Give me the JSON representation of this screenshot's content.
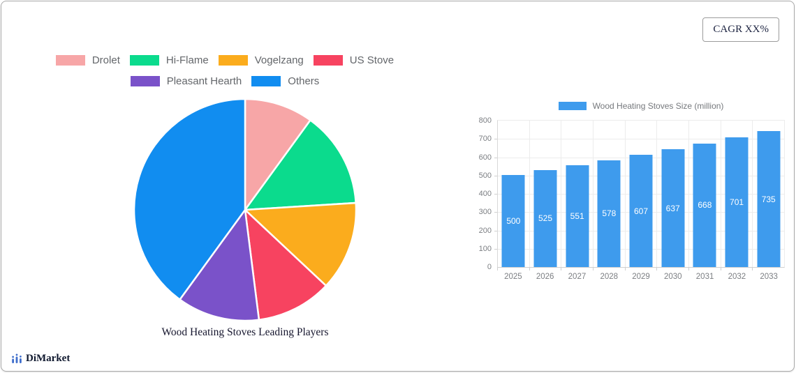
{
  "cagr_button": {
    "label": "CAGR XX%"
  },
  "logo": {
    "text": "DiMarket",
    "icon": "bar-chart-logo-icon",
    "icon_color": "#3f6ecc"
  },
  "pie_legend_rows": [
    [
      "Drolet",
      "Hi-Flame",
      "Vogelzang",
      "US Stove"
    ],
    [
      "Pleasant Hearth",
      "Others"
    ]
  ],
  "chart_data": [
    {
      "type": "pie",
      "title": "Wood Heating Stoves Leading Players",
      "legend_position": "top",
      "start_angle_deg": 0,
      "direction": "clockwise",
      "unit": "percent-estimated-from-arc-angles",
      "slices": [
        {
          "label": "Drolet",
          "value": 10,
          "color": "#F7A6A7"
        },
        {
          "label": "Hi-Flame",
          "value": 14,
          "color": "#0BDB8D"
        },
        {
          "label": "Vogelzang",
          "value": 13,
          "color": "#FBAC1D"
        },
        {
          "label": "US Stove",
          "value": 11,
          "color": "#F74360"
        },
        {
          "label": "Pleasant Hearth",
          "value": 12,
          "color": "#7A52C9"
        },
        {
          "label": "Others",
          "value": 40,
          "color": "#118DF0"
        }
      ]
    },
    {
      "type": "bar",
      "legend_label": "Wood Heating Stoves Size (million)",
      "categories": [
        "2025",
        "2026",
        "2027",
        "2028",
        "2029",
        "2030",
        "2031",
        "2032",
        "2033"
      ],
      "values": [
        500,
        525,
        551,
        578,
        607,
        637,
        668,
        701,
        735
      ],
      "ylim": [
        0,
        800
      ],
      "ytick_step": 100,
      "bar_color": "#3E9BED",
      "grid": true,
      "value_label_style": "white, centered inside bar",
      "legend_position": "top"
    }
  ]
}
